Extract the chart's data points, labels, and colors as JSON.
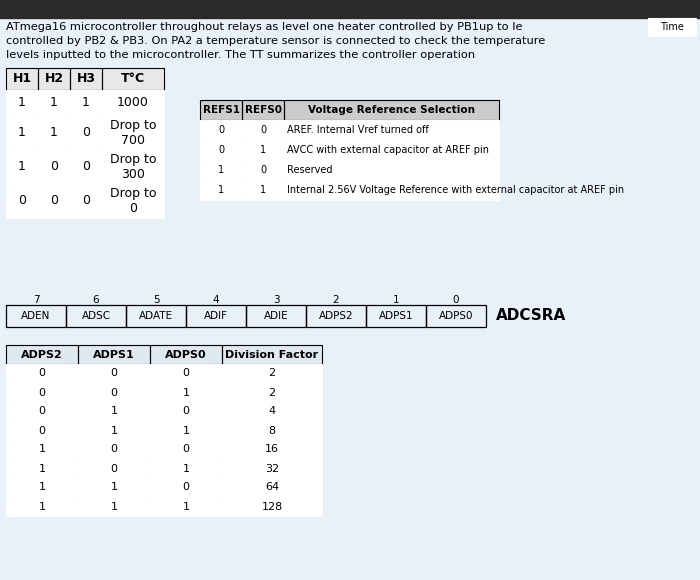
{
  "bg_color": "#e8f0f8",
  "text_color": "#1a1a1a",
  "header_text": "ATmega16 microcontroller throughout relays as level one heater controlled by PB1up to le",
  "time_label": "Time",
  "body_text_line2": "controlled by PB2 & PB3. On PA2 a temperature sensor is connected to check the temperature",
  "body_text_line3": "levels inputted to the microcontroller. The TT summarizes the controller operation",
  "table1_headers": [
    "H1",
    "H2",
    "H3",
    "T°C"
  ],
  "table1_rows": [
    [
      "1",
      "1",
      "1",
      "1000"
    ],
    [
      "1",
      "1",
      "0",
      "Drop to\n700"
    ],
    [
      "1",
      "0",
      "0",
      "Drop to\n300"
    ],
    [
      "0",
      "0",
      "0",
      "Drop to\n0"
    ]
  ],
  "table2_headers": [
    "REFS1",
    "REFS0",
    "Voltage Reference Selection"
  ],
  "table2_rows": [
    [
      "0",
      "0",
      "AREF. Internal Vref turned off"
    ],
    [
      "0",
      "1",
      "AVCC with external capacitor at AREF pin"
    ],
    [
      "1",
      "0",
      "Reserved"
    ],
    [
      "1",
      "1",
      "Internal 2.56V Voltage Reference with external capacitor at AREF pin"
    ]
  ],
  "register_label": "ADCSRA",
  "register_bits": [
    "7",
    "6",
    "5",
    "4",
    "3",
    "2",
    "1",
    "0"
  ],
  "register_names": [
    "ADEN",
    "ADSC",
    "ADATE",
    "ADIF",
    "ADIE",
    "ADPS2",
    "ADPS1",
    "ADPS0"
  ],
  "table3_headers": [
    "ADPS2",
    "ADPS1",
    "ADPS0",
    "Division Factor"
  ],
  "table3_rows": [
    [
      "0",
      "0",
      "0",
      "2"
    ],
    [
      "0",
      "0",
      "1",
      "2"
    ],
    [
      "0",
      "1",
      "0",
      "4"
    ],
    [
      "0",
      "1",
      "1",
      "8"
    ],
    [
      "1",
      "0",
      "0",
      "16"
    ],
    [
      "1",
      "0",
      "1",
      "32"
    ],
    [
      "1",
      "1",
      "0",
      "64"
    ],
    [
      "1",
      "1",
      "1",
      "128"
    ]
  ]
}
